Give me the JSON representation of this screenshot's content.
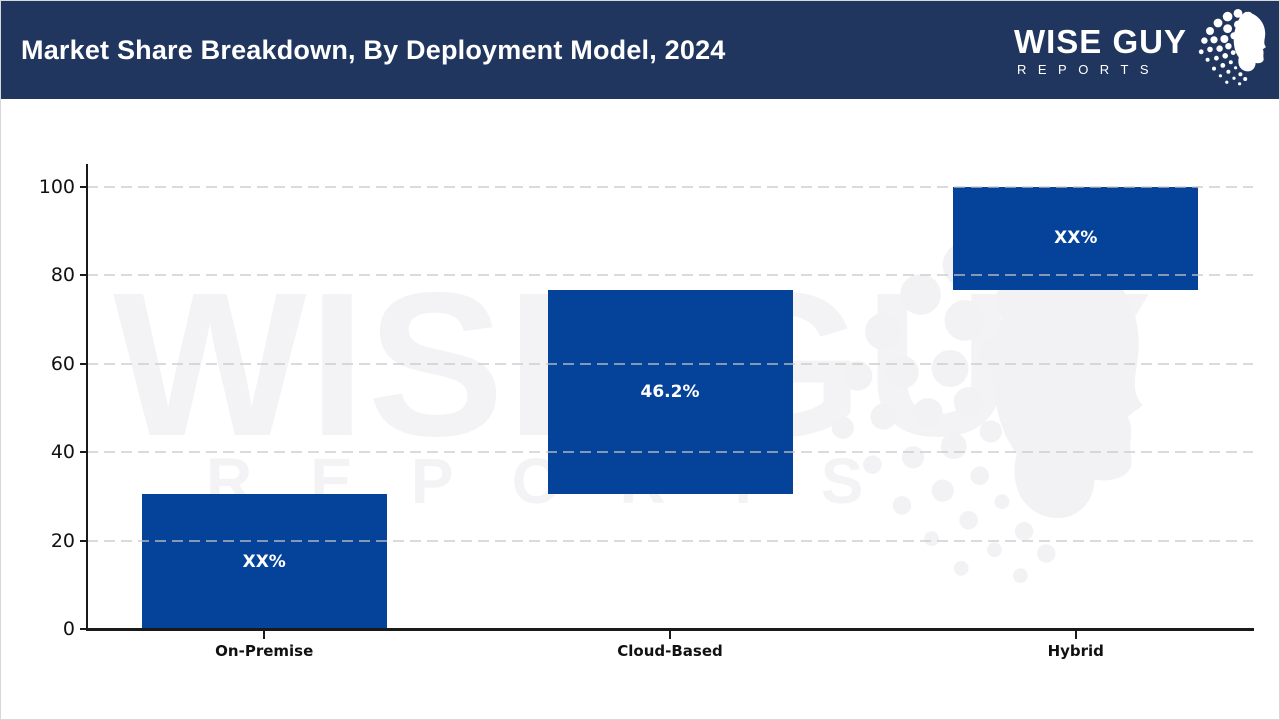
{
  "header": {
    "title": "Market Share Breakdown, By Deployment Model, 2024",
    "background_color": "#21365F",
    "brand": {
      "name": "WISE GUY",
      "subtitle": "REPORTS"
    }
  },
  "watermark": {
    "line1": "WISE GUY",
    "line2": "REPORTS"
  },
  "chart_data": {
    "type": "bar",
    "subtype": "waterfall",
    "title": "Market Share Breakdown, By Deployment Model, 2024",
    "categories": [
      "On-Premise",
      "Cloud-Based",
      "Hybrid"
    ],
    "series": [
      {
        "name": "Market share (%)",
        "bases": [
          0,
          30.5,
          76.7
        ],
        "values": [
          30.5,
          46.2,
          23.3
        ],
        "labels": [
          "XX%",
          "46.2%",
          "XX%"
        ]
      }
    ],
    "xlabel": "",
    "ylabel": "",
    "ylim": [
      0,
      100
    ],
    "yticks": [
      0,
      20,
      40,
      60,
      80,
      100
    ],
    "grid": "horizontal-dashed",
    "legend": "none",
    "bar_color": "#05429A",
    "bar_label_color": "#FFFFFF",
    "axis_color": "#1a1a1a"
  }
}
